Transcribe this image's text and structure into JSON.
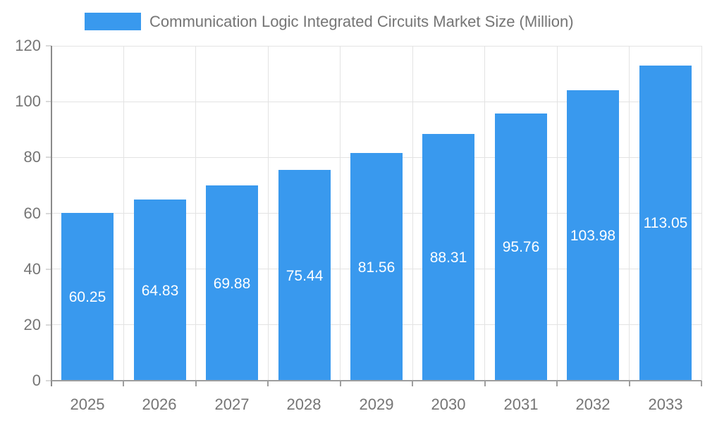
{
  "legend": {
    "label": "Communication Logic Integrated Circuits Market Size (Million)"
  },
  "chart_data": {
    "type": "bar",
    "title": "Communication Logic Integrated Circuits Market Size (Million)",
    "categories": [
      "2025",
      "2026",
      "2027",
      "2028",
      "2029",
      "2030",
      "2031",
      "2032",
      "2033"
    ],
    "values": [
      60.25,
      64.83,
      69.88,
      75.44,
      81.56,
      88.31,
      95.76,
      103.98,
      113.05
    ],
    "value_labels": [
      "60.25",
      "64.83",
      "69.88",
      "75.44",
      "81.56",
      "88.31",
      "95.76",
      "103.98",
      "113.05"
    ],
    "xlabel": "",
    "ylabel": "",
    "ylim": [
      0,
      120
    ],
    "yticks": [
      0,
      20,
      40,
      60,
      80,
      100,
      120
    ],
    "grid": true,
    "legend_position": "top",
    "colors": {
      "bar": "#3999EE",
      "grid": "#e3e3e3",
      "y_axis": "#8a8a8a",
      "x_axis": "#9e9e9e",
      "tick_text": "#757575",
      "bar_label": "#ffffff",
      "background": "#ffffff"
    }
  }
}
